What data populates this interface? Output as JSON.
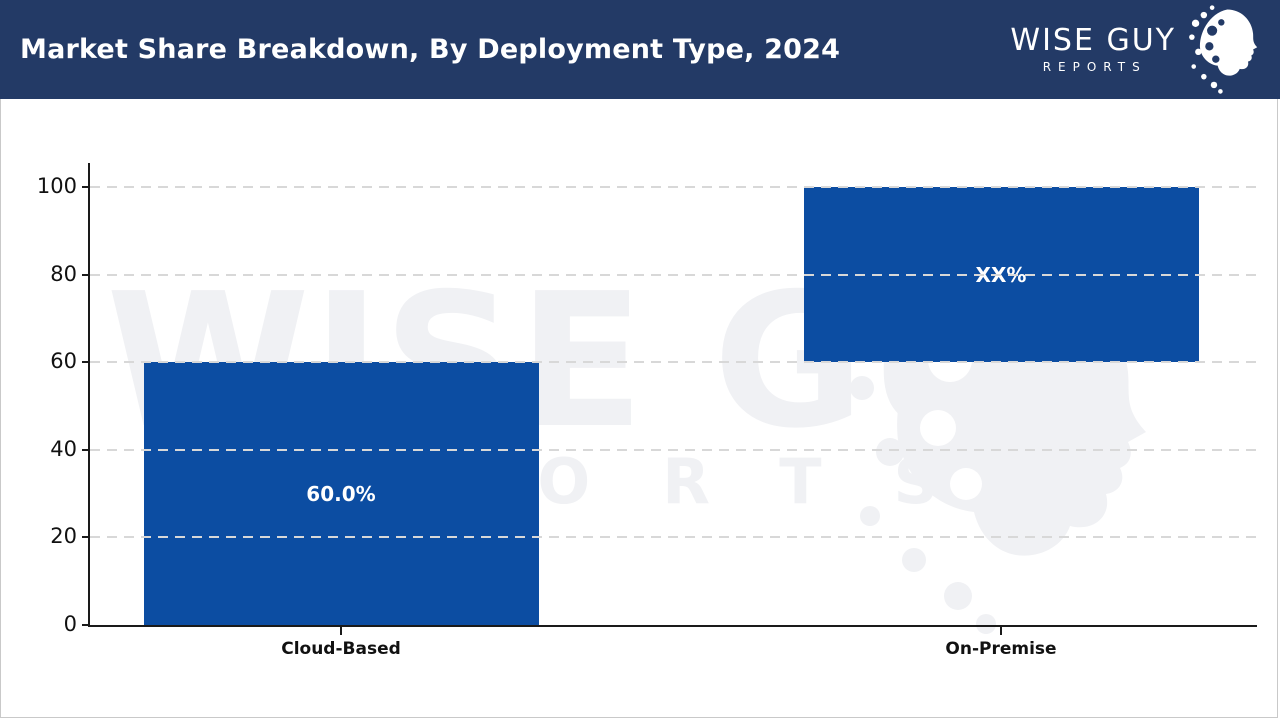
{
  "header": {
    "title": "Market Share Breakdown, By Deployment Type, 2024",
    "bg_color": "#233A66",
    "logo": {
      "line1": "WISE GUY",
      "line2": "REPORTS"
    }
  },
  "watermark": {
    "line1": "WISE GUY",
    "line2": "REPORTS"
  },
  "chart_data": {
    "type": "bar",
    "title": "Market Share Breakdown, By Deployment Type, 2024",
    "categories": [
      "Cloud-Based",
      "On-Premise"
    ],
    "series": [
      {
        "name": "Market Share (%)",
        "bars": [
          {
            "category": "Cloud-Based",
            "value_start": 0,
            "value_end": 60,
            "label": "60.0%"
          },
          {
            "category": "On-Premise",
            "value_start": 60,
            "value_end": 100,
            "label": "XX%"
          }
        ]
      }
    ],
    "ylim": [
      0,
      100
    ],
    "yticks": [
      0,
      20,
      40,
      60,
      80,
      100
    ],
    "xlabel": "",
    "ylabel": "",
    "grid": "horizontal-dashed",
    "legend": "none",
    "bar_color": "#0C4DA2",
    "bar_label_color": "#FFFFFF",
    "gridline_color": "#D8D8D8",
    "axis_color": "#1A1A1A",
    "watermark_color": "#F0F1F4"
  }
}
